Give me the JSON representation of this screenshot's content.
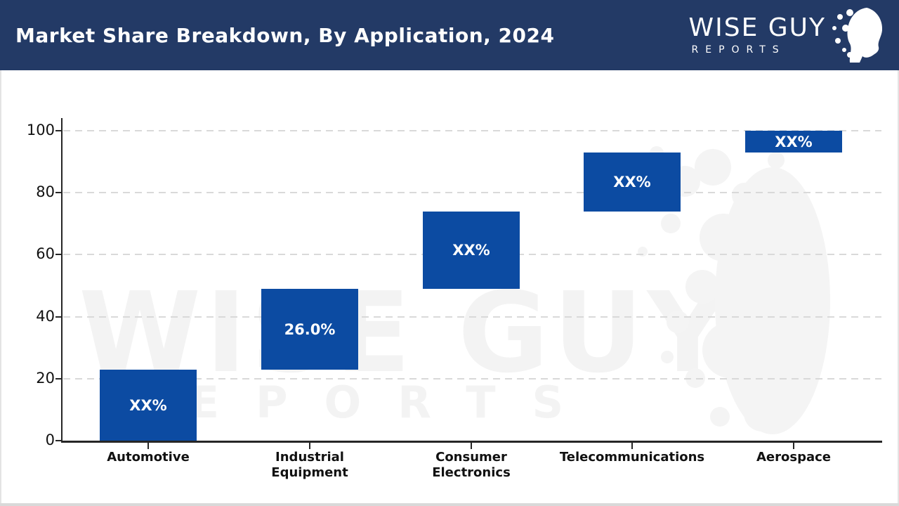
{
  "header": {
    "title": "Market Share Breakdown, By Application, 2024",
    "bg_color": "#233a66",
    "logo": {
      "line1": "WISE GUY",
      "line2": "REPORTS"
    }
  },
  "watermark": {
    "line1": "WISE GUY",
    "line2": "REPORTS"
  },
  "chart_data": {
    "type": "bar",
    "subtype": "floating-waterfall-segments",
    "title": "Market Share Breakdown, By Application, 2024",
    "categories": [
      "Automotive",
      "Industrial\nEquipment",
      "Consumer\nElectronics",
      "Telecommunications",
      "Aerospace"
    ],
    "series": [
      {
        "name": "Market Share (%)",
        "segments": [
          {
            "category": "Automotive",
            "start": 0,
            "end": 23,
            "value": 23,
            "label": "XX%"
          },
          {
            "category": "Industrial Equipment",
            "start": 23,
            "end": 49,
            "value": 26,
            "label": "26.0%"
          },
          {
            "category": "Consumer Electronics",
            "start": 49,
            "end": 74,
            "value": 25,
            "label": "XX%"
          },
          {
            "category": "Telecommunications",
            "start": 74,
            "end": 93,
            "value": 19,
            "label": "XX%"
          },
          {
            "category": "Aerospace",
            "start": 93,
            "end": 100,
            "value": 7,
            "label": "XX%"
          }
        ]
      }
    ],
    "xlabel": "",
    "ylabel": "",
    "ylim": [
      0,
      100
    ],
    "yticks": [
      0,
      20,
      40,
      60,
      80,
      100
    ],
    "grid": "horizontal-dashed",
    "legend": "none",
    "bar_color": "#0c4ba2",
    "bar_label_color": "#ffffff",
    "grid_color": "#d9d9d9",
    "axis_color": "#262626"
  }
}
